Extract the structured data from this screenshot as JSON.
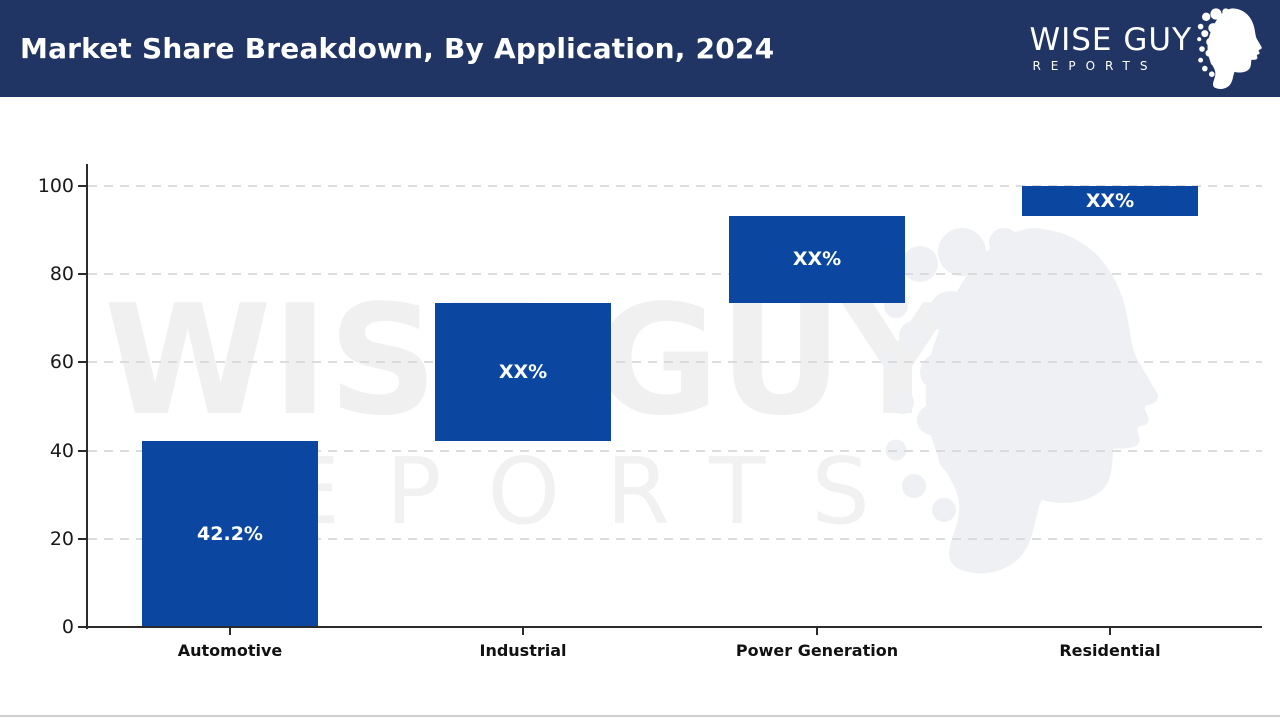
{
  "header": {
    "title": "Market Share Breakdown, By Application, 2024",
    "logo": {
      "wordmark": "WISE GUY",
      "subtext": "REPORTS"
    }
  },
  "watermark": {
    "wordmark": "WISE GUY",
    "subtext": "REPORTS"
  },
  "colors": {
    "header_bg": "#213564",
    "bar": "#0b47a0",
    "grid": "#dcdcdc",
    "axis": "#2b2b2b",
    "bar_label_text": "#ffffff",
    "watermark": "#f0f0f0"
  },
  "chart_data": {
    "type": "bar",
    "subtype": "stacked-waterfall",
    "title": "Market Share Breakdown, By Application, 2024",
    "categories": [
      "Automotive",
      "Industrial",
      "Power Generation",
      "Residential"
    ],
    "segments": [
      {
        "category": "Automotive",
        "start": 0,
        "end": 42.2,
        "value": 42.2,
        "label": "42.2%"
      },
      {
        "category": "Industrial",
        "start": 42.2,
        "end": 73.4,
        "value": 31.2,
        "label": "XX%"
      },
      {
        "category": "Power Generation",
        "start": 73.4,
        "end": 93.2,
        "value": 19.8,
        "label": "XX%"
      },
      {
        "category": "Residential",
        "start": 93.2,
        "end": 100,
        "value": 6.8,
        "label": "XX%"
      }
    ],
    "yticks": [
      0,
      20,
      40,
      60,
      80,
      100
    ],
    "ylim": [
      0,
      105
    ],
    "xlabel": "",
    "ylabel": "",
    "grid": "horizontal-dashed",
    "legend": "none"
  }
}
